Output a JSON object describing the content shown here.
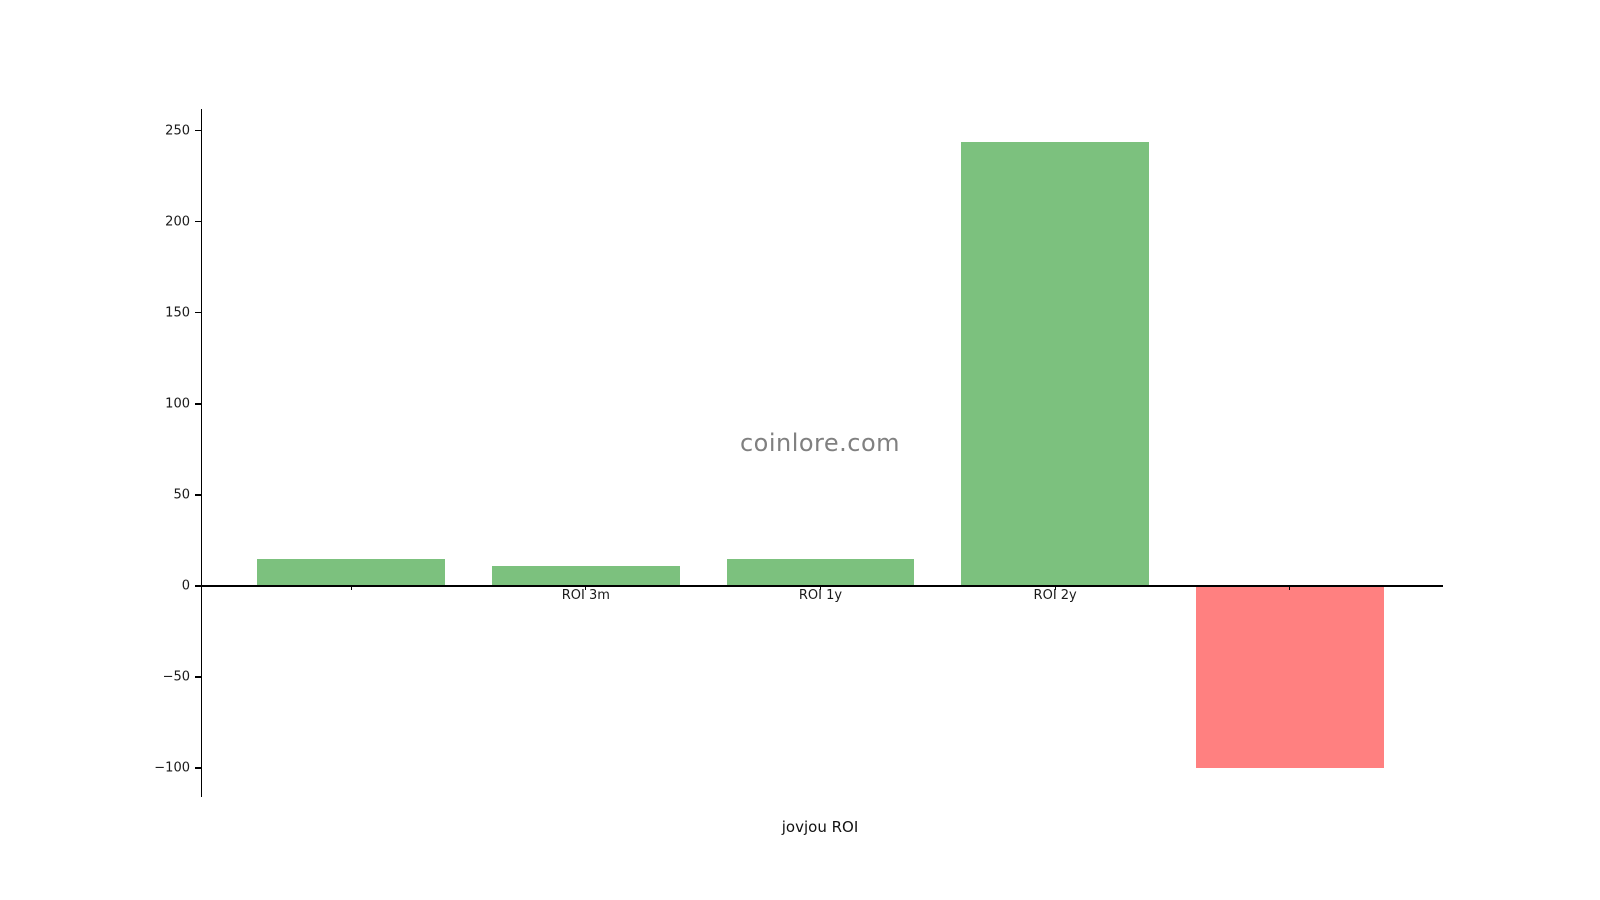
{
  "chart_data": {
    "type": "bar",
    "title": "jovjou ROI",
    "watermark": "coinlore.com",
    "categories": [
      "",
      "ROI 3m",
      "ROI 1y",
      "ROI 2y",
      ""
    ],
    "values": [
      15,
      11,
      14.5,
      244,
      -100
    ],
    "xlabel": "",
    "ylabel": "",
    "ylim": [
      -116,
      262
    ],
    "yticks": [
      250,
      200,
      150,
      100,
      50,
      0,
      -50,
      -100
    ],
    "grid": false,
    "legend_position": "none",
    "bar_width_fraction": 0.8,
    "colors": {
      "positive_bar": "#7cc17e",
      "negative_bar": "#ff8080",
      "axis": "#000000",
      "tick_label": "#1a1a1a",
      "watermark": "#808080",
      "title_text": "#111111",
      "background": "#ffffff"
    }
  }
}
